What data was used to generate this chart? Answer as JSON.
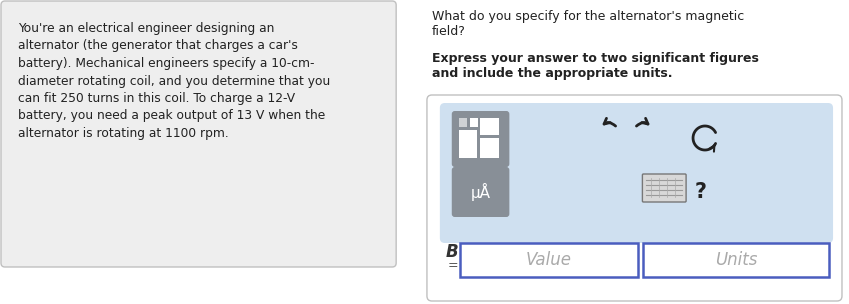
{
  "left_text_lines": [
    "You're an electrical engineer designing an",
    "alternator (the generator that charges a car's",
    "battery). Mechanical engineers specify a 10-cm-",
    "diameter rotating coil, and you determine that you",
    "can fit 250 turns in this coil. To charge a 12-V",
    "battery, you need a peak output of 13 V when the",
    "alternator is rotating at 1100 rpm."
  ],
  "right_question": "What do you specify for the alternator's magnetic\nfield?",
  "right_instruction_bold": "Express your answer to two significant figures\nand include the appropriate units.",
  "value_label": "Value",
  "units_label": "Units",
  "bg_color": "#cfe0f0",
  "left_box_bg": "#eeeeee",
  "toolbar_btn_bg": "#888f97",
  "input_box_color": "#4a5dbf",
  "overall_bg": "#ffffff",
  "outer_box_bg": "#ffffff",
  "outer_box_edge": "#c0c0c0"
}
